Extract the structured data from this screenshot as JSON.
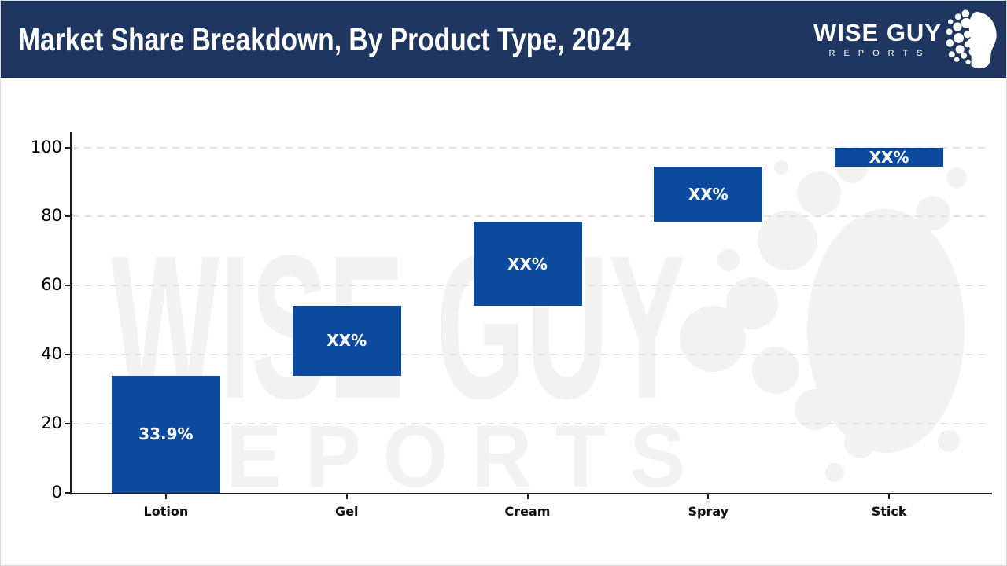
{
  "header": {
    "title": "Market Share Breakdown, By Product Type, 2024",
    "logo": {
      "line1": "WISE GUY",
      "line2": "REPORTS"
    }
  },
  "watermark": {
    "line1": "WISE GUY",
    "line2": "R E P O R T S"
  },
  "chart_data": {
    "type": "bar",
    "subtype": "waterfall-floating-bars",
    "title": "Market Share Breakdown, By Product Type, 2024",
    "categories": [
      "Lotion",
      "Gel",
      "Cream",
      "Spray",
      "Stick"
    ],
    "segments": [
      {
        "category": "Lotion",
        "start": 0,
        "end": 33.9,
        "value_estimate": 33.9,
        "label": "33.9%"
      },
      {
        "category": "Gel",
        "start": 33.9,
        "end": 54.2,
        "value_estimate": 20.3,
        "label": "XX%"
      },
      {
        "category": "Cream",
        "start": 54.2,
        "end": 78.4,
        "value_estimate": 24.2,
        "label": "XX%"
      },
      {
        "category": "Spray",
        "start": 78.4,
        "end": 94.5,
        "value_estimate": 16.1,
        "label": "XX%"
      },
      {
        "category": "Stick",
        "start": 94.5,
        "end": 100,
        "value_estimate": 5.5,
        "label": "XX%"
      }
    ],
    "xlabel": "",
    "ylabel": "",
    "ylim": [
      0,
      100
    ],
    "yticks": [
      0,
      20,
      40,
      60,
      80,
      100
    ],
    "grid": "horizontal-dashed",
    "legend": "none",
    "bar_color": "#0c4a9e",
    "bar_label_color": "#ffffff"
  },
  "colors": {
    "header_bg": "#1f3760",
    "bar": "#0c4a9e",
    "grid": "#e3e3e3",
    "axis": "#1a1a1a",
    "watermark": "#f2f2f2",
    "page_border": "#d9d9d9"
  }
}
